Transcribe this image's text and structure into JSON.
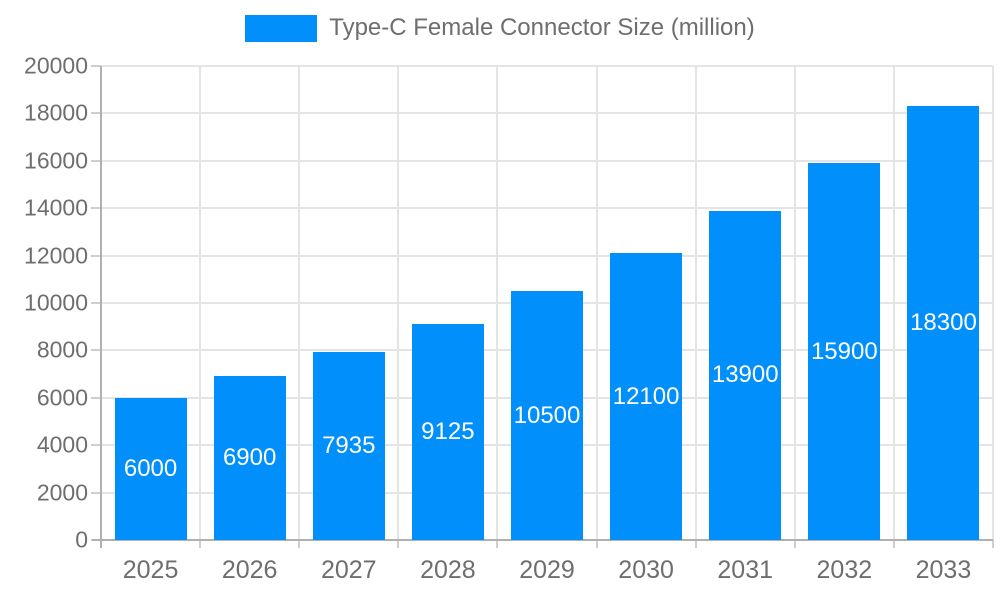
{
  "chart_data": {
    "type": "bar",
    "title": "Type-C Female Connector Size (million)",
    "categories": [
      "2025",
      "2026",
      "2027",
      "2028",
      "2029",
      "2030",
      "2031",
      "2032",
      "2033"
    ],
    "values": [
      6000,
      6900,
      7935,
      9125,
      10500,
      12100,
      13900,
      15900,
      18300
    ],
    "series": [
      {
        "name": "Type-C Female Connector Size (million)",
        "values": [
          6000,
          6900,
          7935,
          9125,
          10500,
          12100,
          13900,
          15900,
          18300
        ]
      }
    ],
    "xlabel": "",
    "ylabel": "",
    "ylim": [
      0,
      20000
    ],
    "ytick_step": 2000,
    "yticks": [
      0,
      2000,
      4000,
      6000,
      8000,
      10000,
      12000,
      14000,
      16000,
      18000,
      20000
    ],
    "grid": true,
    "legend_position": "top",
    "bar_labels_inside": true,
    "colors": {
      "bar": "#008FFB",
      "bar_label": "#ffffff",
      "axis_label": "#6e6e6e",
      "legend_text": "#6e6e6e",
      "gridline": "#e4e4e4",
      "axis_line": "#b0b0b0",
      "tick": "#cfcfcf",
      "background": "#ffffff"
    }
  }
}
